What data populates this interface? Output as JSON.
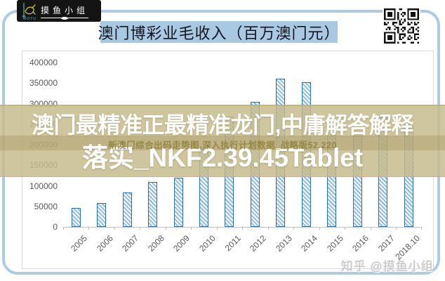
{
  "logo": {
    "brand": "摸鱼小组",
    "sub": "MOYU"
  },
  "header": {
    "title": "澳门博彩业毛收入（百万澳门元）"
  },
  "overlay": {
    "line1": "澳门最精准正最精准龙门,中庸解答解释",
    "line2": "落实_NKF2.39.45Tablet",
    "band_text": "新澳门综合出码走势图,深入执行计划数据_战略版52.220"
  },
  "watermark": {
    "text": "知乎 @摸鱼小组"
  },
  "colors": {
    "frame": "#aecbe2",
    "title_highlight": "#a9c9e3",
    "title_text": "#15151f",
    "bar_border": "#2f6f9f",
    "bar_fill": "#e9f1f7",
    "bar_hatch": "#85b4d2",
    "overlay_tan": "rgba(198,186,139,0.84)",
    "overlay_band": "rgba(150,132,72,0.28)",
    "overlay_text": "#ffffff",
    "overlay_text_small": "rgba(146,130,62,0.9)",
    "axis_text": "#595959",
    "axis_line": "#c0c0c0",
    "chart_border": "#d9d9d9",
    "watermark": "#c6c6c6",
    "logo_bg": "#141414"
  },
  "chart_data": {
    "type": "bar",
    "title": "澳门博彩业毛收入（百万澳门元）",
    "categories": [
      "2005",
      "2006",
      "2007",
      "2008",
      "2009",
      "2010",
      "2011",
      "2012",
      "2013",
      "2014",
      "2015",
      "2016",
      "2017",
      "2018.10"
    ],
    "values": [
      47000,
      57500,
      84000,
      110000,
      120000,
      190000,
      268000,
      304000,
      361000,
      352000,
      231000,
      223000,
      266000,
      251000
    ],
    "xlabel": "",
    "ylabel": "",
    "ylim": [
      0,
      400000
    ],
    "ytick_step": 50000,
    "ytick_labels": [
      "0",
      "50000",
      "100000",
      "150000",
      "200000",
      "250000",
      "300000",
      "350000",
      "400000"
    ],
    "grid": false,
    "legend": false,
    "bar_style": "diagonal-hatch"
  }
}
